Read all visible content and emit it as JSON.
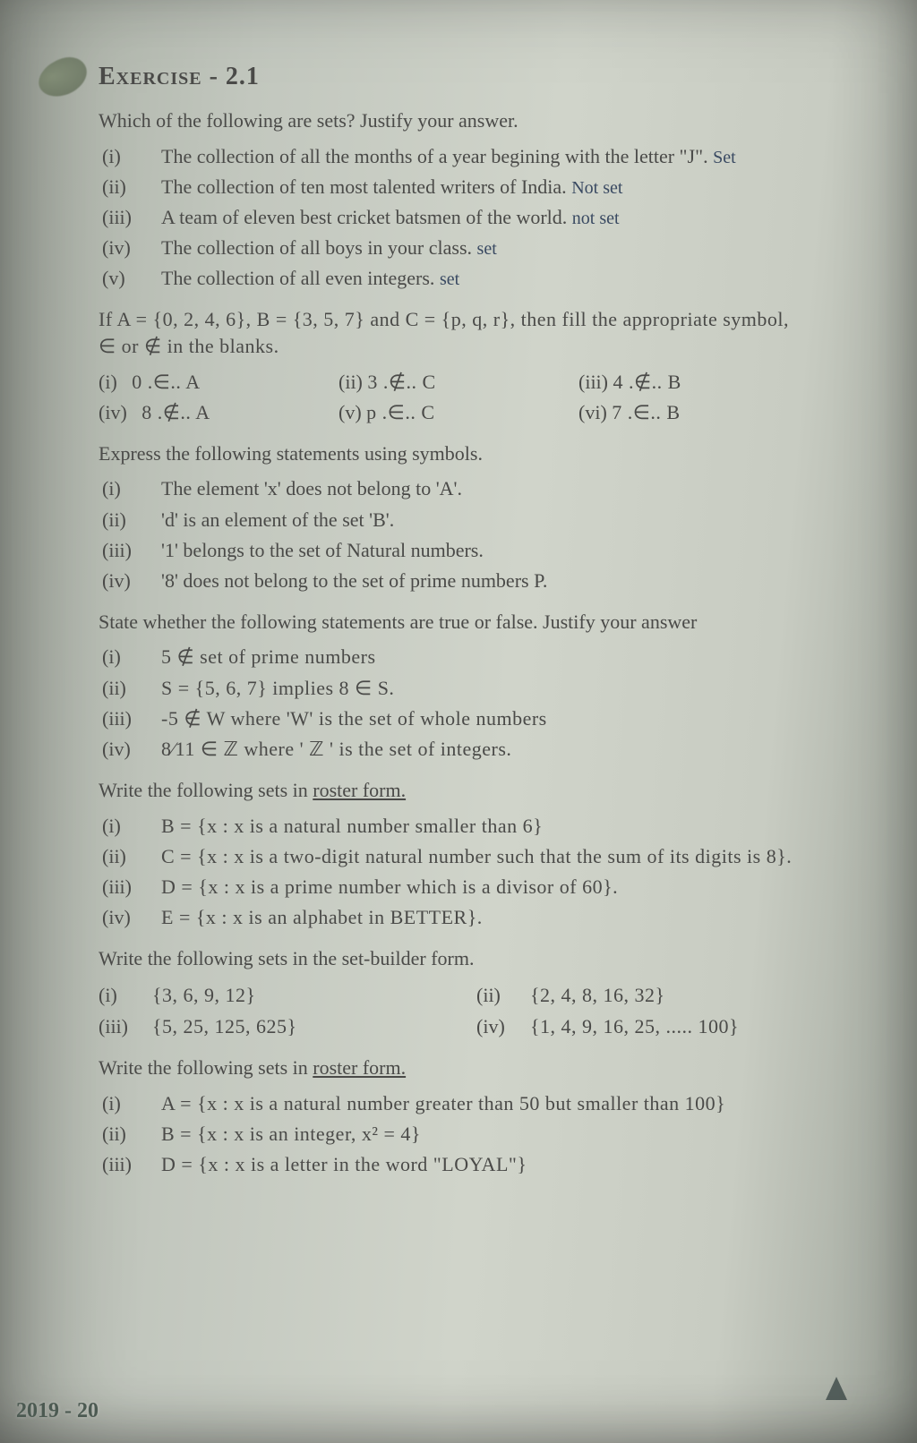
{
  "exercise_title": "Exercise - 2.1",
  "q1": {
    "head": "Which of the following are sets? Justify your answer.",
    "items": [
      "The collection of all the months of a year begining with the letter \"J\".",
      "The collection of ten most talented writers of India.",
      "A team of eleven best cricket batsmen of the world.",
      "The collection of all boys in your class.",
      "The collection of all even integers."
    ],
    "hand": [
      "Set",
      "Not set",
      "not set",
      "set",
      "set"
    ]
  },
  "q2": {
    "head_a": "If A = {0, 2, 4, 6},  B = {3, 5, 7} and C = {p, q, r}, then fill the appropriate symbol,",
    "head_b": "∈ or ∉ in the blanks.",
    "items": [
      "0 .∈.. A",
      "3 .∉.. C",
      "4 .∉.. B",
      "8 .∉.. A",
      "p .∈.. C",
      "7 .∈.. B"
    ]
  },
  "q3": {
    "head": "Express the following statements using symbols.",
    "items": [
      "The element 'x' does not belong to 'A'.",
      "'d' is an element of the set 'B'.",
      "'1' belongs to the set of Natural numbers.",
      "'8' does not belong to the set of prime numbers P."
    ]
  },
  "q4": {
    "head": "State whether the following statements are true or false. Justify your answer",
    "items": [
      "5 ∉ set of prime numbers",
      "S = {5, 6, 7} implies 8 ∈ S.",
      "-5 ∉ W where 'W' is the set of whole numbers",
      "8⁄11 ∈ ℤ  where ' ℤ ' is the set of integers."
    ]
  },
  "q5": {
    "head_pre": "Write the following sets in ",
    "head_u": "roster form.",
    "items": [
      "B = {x : x is a natural number smaller than 6}",
      "C = {x : x is a two-digit natural number such that the sum of its digits is 8}.",
      "D = {x : x is a prime number which is a divisor of 60}.",
      "E = {x : x is an alphabet in BETTER}."
    ]
  },
  "q6": {
    "head": "Write the following sets in the set-builder form.",
    "items": [
      "{3, 6, 9, 12}",
      "{2, 4, 8, 16, 32}",
      "{5, 25, 125, 625}",
      "{1, 4, 9, 16, 25, ..... 100}"
    ]
  },
  "q7": {
    "head_pre": "Write the following sets in ",
    "head_u": "roster form.",
    "items": [
      "A = {x : x is a natural number greater than 50 but smaller than 100}",
      "B = {x : x is an integer,  x² = 4}",
      "D = {x : x is a letter in the word \"LOYAL\"}"
    ]
  },
  "roman": [
    "(i)",
    "(ii)",
    "(iii)",
    "(iv)",
    "(v)",
    "(vi)"
  ],
  "footer": "2019 - 20"
}
